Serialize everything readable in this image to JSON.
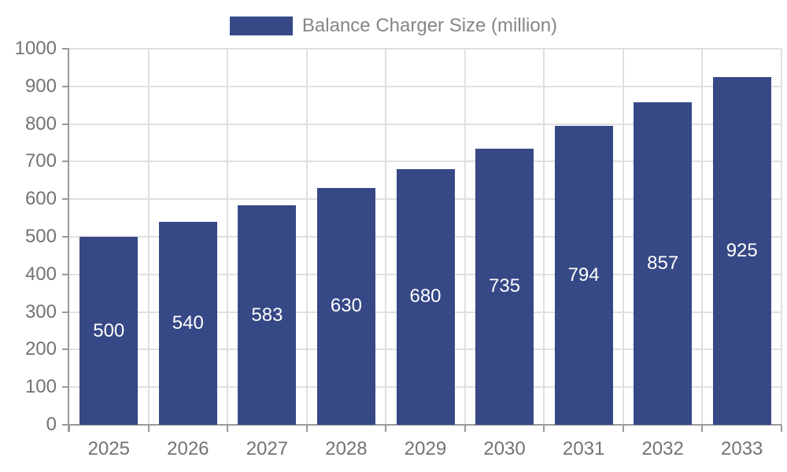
{
  "legend": {
    "series_label": "Balance Charger Size (million)"
  },
  "chart_data": {
    "type": "bar",
    "title": "Balance Charger Size (million)",
    "categories": [
      "2025",
      "2026",
      "2027",
      "2028",
      "2029",
      "2030",
      "2031",
      "2032",
      "2033"
    ],
    "values": [
      500,
      540,
      583,
      630,
      680,
      735,
      794,
      857,
      925
    ],
    "xlabel": "",
    "ylabel": "",
    "ylim": [
      0,
      1000
    ],
    "ytick_step": 100,
    "ytick_labels": [
      "0",
      "100",
      "200",
      "300",
      "400",
      "500",
      "600",
      "700",
      "800",
      "900",
      "1000"
    ],
    "grid": true,
    "legend_position": "top-center",
    "value_labels": "inside-middle",
    "colors": {
      "bar": "#364885",
      "bar_value_text": "#ffffff",
      "axis_line": "#9a9a9a",
      "grid_line": "#e0e0e0",
      "tick_label": "#737373",
      "legend_text": "#868686",
      "background": "#ffffff"
    }
  }
}
